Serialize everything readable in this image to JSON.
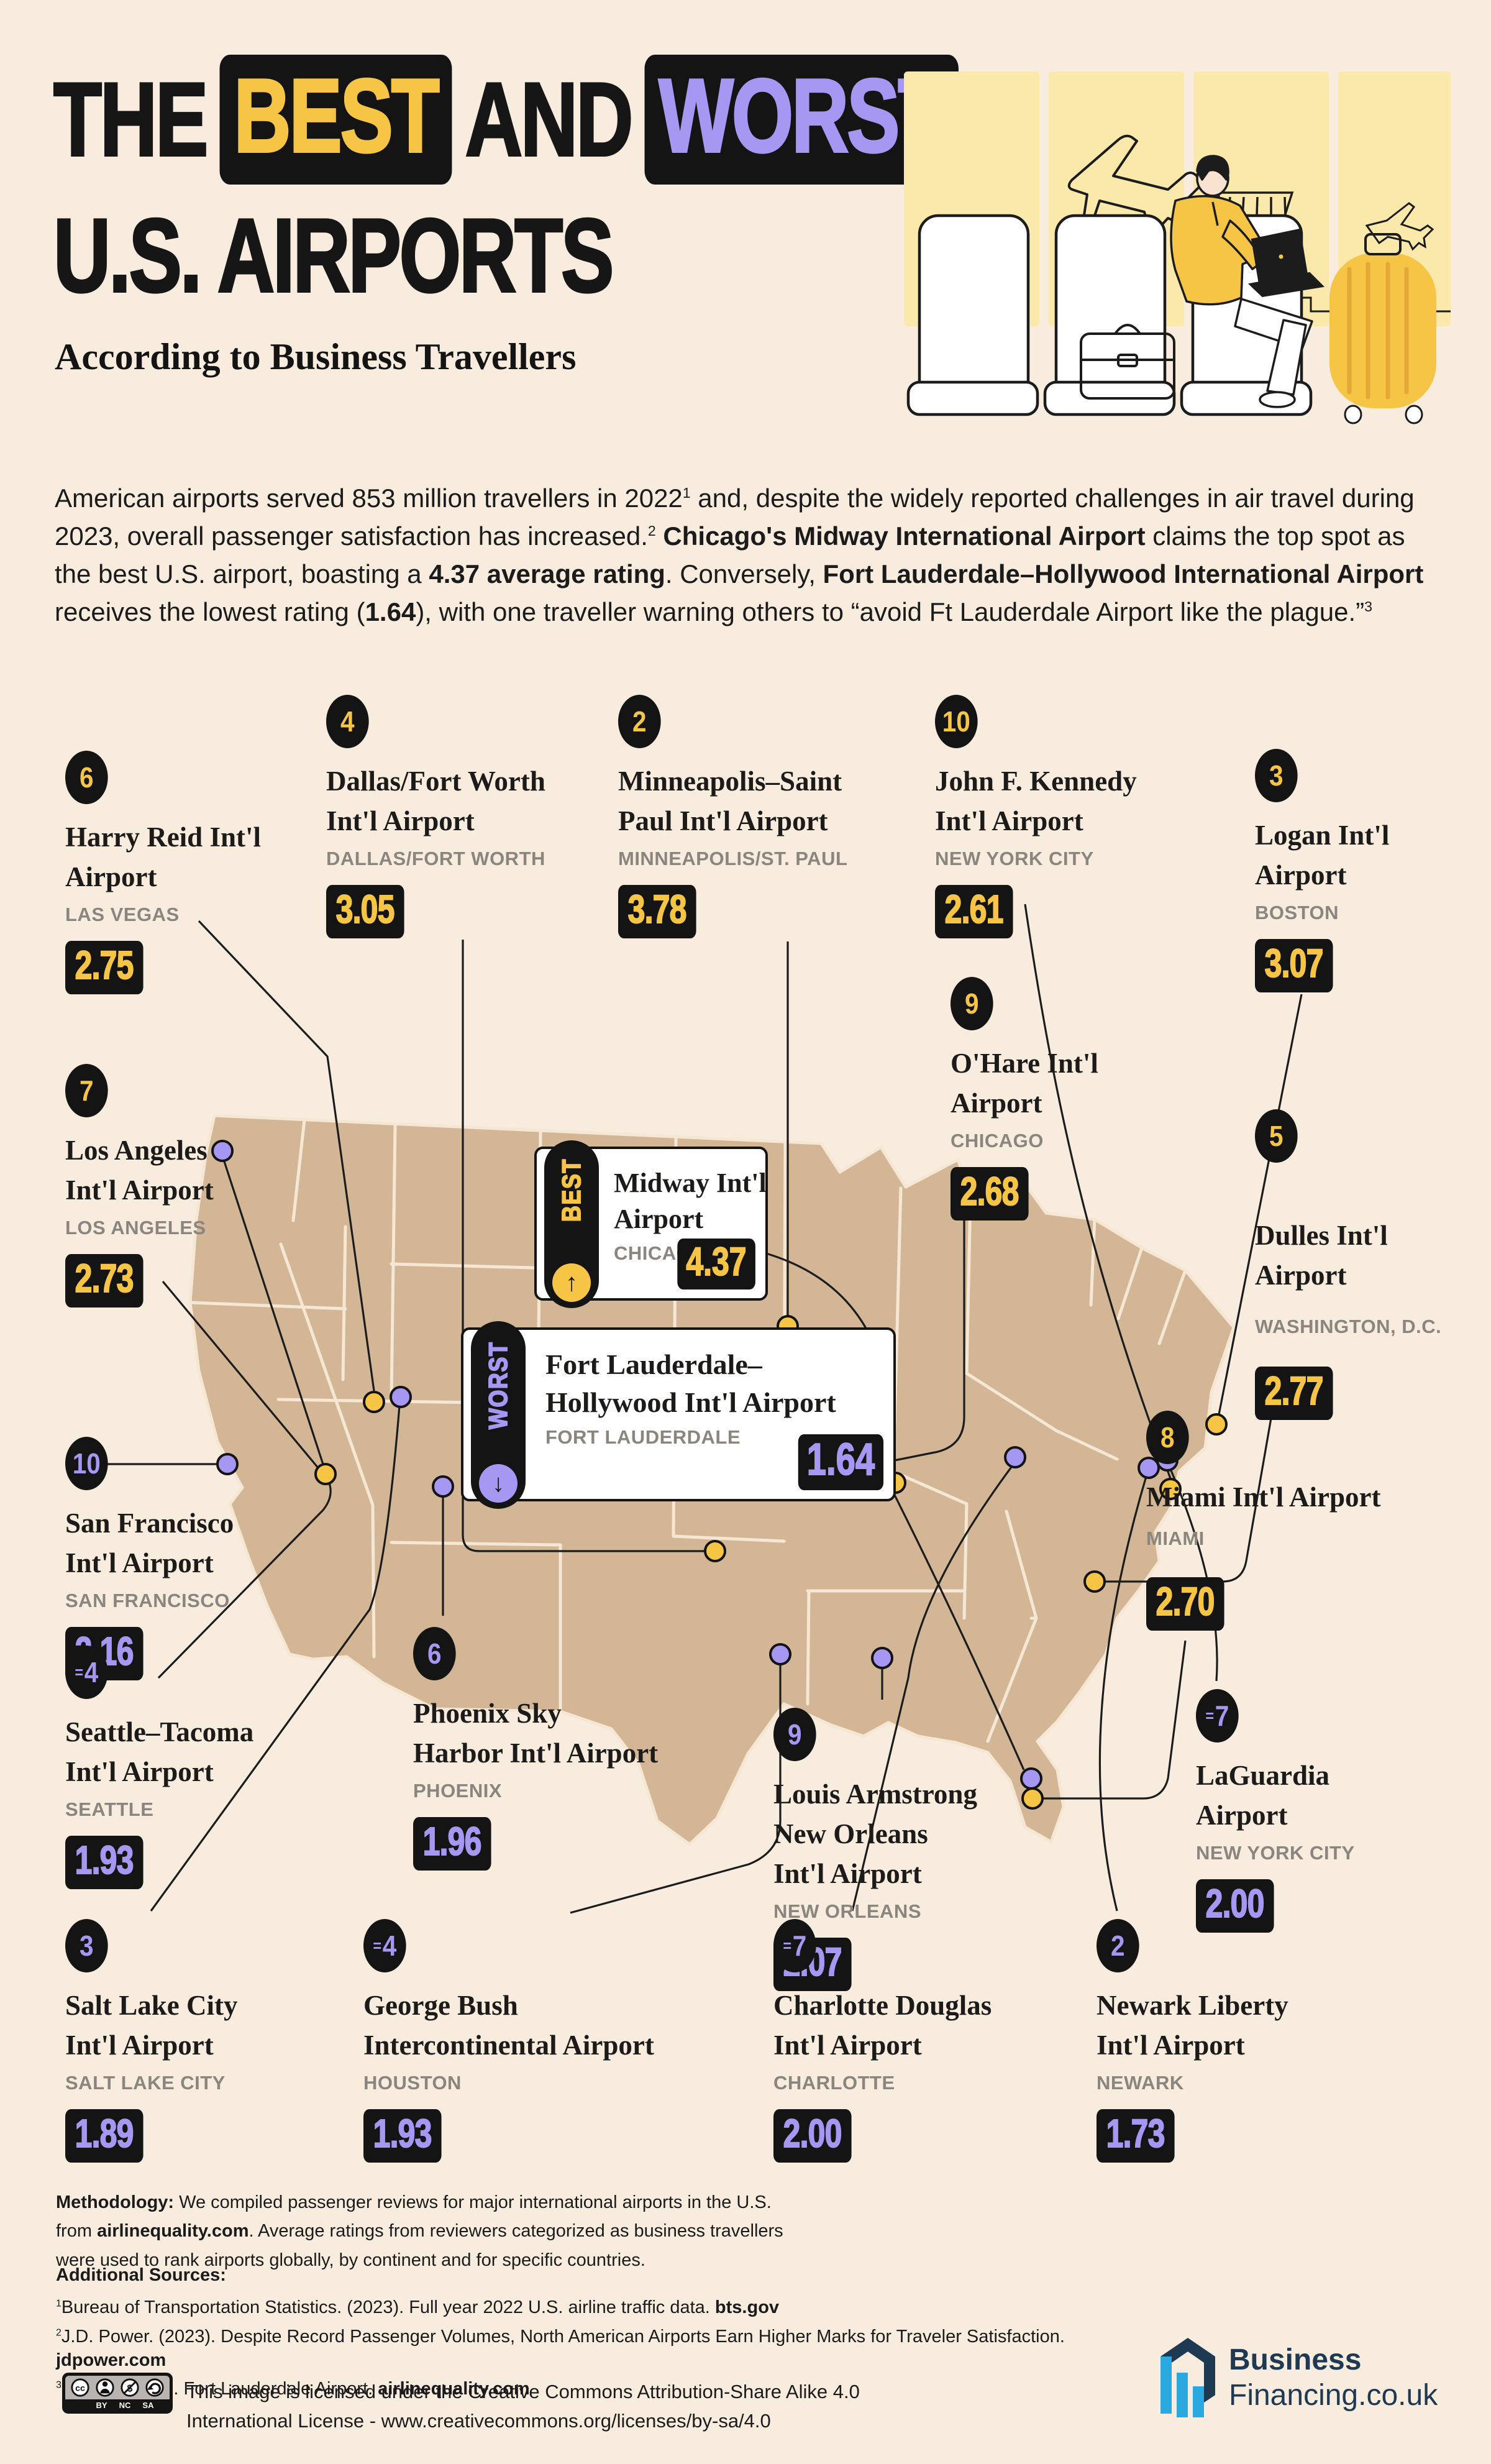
{
  "colors": {
    "background": "#f8ecdf",
    "ink": "#141414",
    "accent_yellow": "#f7c545",
    "accent_purple": "#a597f2",
    "map_fill": "#d2b695",
    "map_border": "#f6e7d4",
    "city_gray": "#8a857e",
    "logo_navy": "#1e3a52",
    "logo_blue": "#2aa9e0"
  },
  "header": {
    "title_the": "THE",
    "title_best": "BEST",
    "title_and": "AND",
    "title_worst": "WORST",
    "title_line2": "U.S. AIRPORTS",
    "subtitle": "According to Business Travellers"
  },
  "intro": {
    "segments": [
      {
        "t": "American airports served 853 million travellers in 2022"
      },
      {
        "t": "1",
        "sup": true
      },
      {
        "t": " and, despite the widely reported challenges in air travel during 2023, overall passenger satisfaction has increased."
      },
      {
        "t": "2",
        "sup": true
      },
      {
        "t": " "
      },
      {
        "t": "Chicago's Midway International Airport",
        "b": true
      },
      {
        "t": " claims the top spot as the best U.S. airport, boasting a "
      },
      {
        "t": "4.37 average rating",
        "b": true
      },
      {
        "t": ". Conversely, "
      },
      {
        "t": "Fort Lauderdale–Hollywood International Airport",
        "b": true
      },
      {
        "t": " receives the lowest rating ("
      },
      {
        "t": "1.64",
        "b": true
      },
      {
        "t": "), with one traveller warning others to “avoid Ft Lauderdale Airport like the plague.”"
      },
      {
        "t": "3",
        "sup": true
      }
    ]
  },
  "callouts": {
    "best": {
      "tag": "BEST",
      "arrow": "↑",
      "name_lines": [
        "Midway Int'l",
        "Airport"
      ],
      "city": "CHICAGO",
      "rating": "4.37"
    },
    "worst": {
      "tag": "WORST",
      "arrow": "↓",
      "name_lines": [
        "Fort Lauderdale–",
        "Hollywood Int'l Airport"
      ],
      "city": "FORT LAUDERDALE",
      "rating": "1.64"
    }
  },
  "airports": [
    {
      "id": "vegas",
      "rank": "6",
      "tone": "best",
      "name_lines": [
        "Harry Reid Int'l",
        "Airport"
      ],
      "city": "LAS VEGAS",
      "rating": "2.75"
    },
    {
      "id": "dfw",
      "rank": "4",
      "tone": "best",
      "name_lines": [
        "Dallas/Fort Worth",
        "Int'l Airport"
      ],
      "city": "DALLAS/FORT WORTH",
      "rating": "3.05"
    },
    {
      "id": "msp",
      "rank": "2",
      "tone": "best",
      "name_lines": [
        "Minneapolis–Saint",
        "Paul Int'l Airport"
      ],
      "city": "MINNEAPOLIS/ST. PAUL",
      "rating": "3.78"
    },
    {
      "id": "jfk",
      "rank": "10",
      "tone": "best",
      "name_lines": [
        "John F. Kennedy",
        "Int'l Airport"
      ],
      "city": "NEW YORK CITY",
      "rating": "2.61"
    },
    {
      "id": "logan",
      "rank": "3",
      "tone": "best",
      "name_lines": [
        "Logan Int'l",
        "Airport"
      ],
      "city": "BOSTON",
      "rating": "3.07"
    },
    {
      "id": "ohare",
      "rank": "9",
      "tone": "best",
      "name_lines": [
        "O'Hare Int'l",
        "Airport"
      ],
      "city": "CHICAGO",
      "rating": "2.68"
    },
    {
      "id": "dulles",
      "rank": "5",
      "tone": "best",
      "name_lines": [
        "Dulles Int'l",
        "Airport"
      ],
      "city": "WASHINGTON, D.C.",
      "rating": "2.77"
    },
    {
      "id": "lax",
      "rank": "7",
      "tone": "best",
      "name_lines": [
        "Los Angeles",
        "Int'l Airport"
      ],
      "city": "LOS ANGELES",
      "rating": "2.73"
    },
    {
      "id": "sfo",
      "rank": "10",
      "tone": "worst",
      "name_lines": [
        "San Francisco",
        "Int'l Airport"
      ],
      "city": "SAN FRANCISCO",
      "rating": "2.16"
    },
    {
      "id": "mia",
      "rank": "8",
      "tone": "best",
      "name_lines": [
        "Miami Int'l Airport"
      ],
      "city": "MIAMI",
      "rating": "2.70"
    },
    {
      "id": "sea",
      "rank": "4",
      "rank_prefix": "=",
      "tone": "worst",
      "name_lines": [
        "Seattle–Tacoma",
        "Int'l Airport"
      ],
      "city": "SEATTLE",
      "rating": "1.93"
    },
    {
      "id": "phx",
      "rank": "6",
      "tone": "worst",
      "name_lines": [
        "Phoenix Sky",
        "Harbor Int'l Airport"
      ],
      "city": "PHOENIX",
      "rating": "1.96"
    },
    {
      "id": "msy",
      "rank": "9",
      "tone": "worst",
      "name_lines": [
        "Louis Armstrong",
        "New Orleans",
        "Int'l Airport"
      ],
      "city": "NEW ORLEANS",
      "rating": "2.07"
    },
    {
      "id": "lga",
      "rank": "7",
      "rank_prefix": "=",
      "tone": "worst",
      "name_lines": [
        "LaGuardia",
        "Airport"
      ],
      "city": "NEW YORK CITY",
      "rating": "2.00"
    },
    {
      "id": "slc",
      "rank": "3",
      "tone": "worst",
      "name_lines": [
        "Salt Lake City",
        "Int'l Airport"
      ],
      "city": "SALT LAKE CITY",
      "rating": "1.89"
    },
    {
      "id": "iah",
      "rank": "4",
      "rank_prefix": "=",
      "tone": "worst",
      "name_lines": [
        "George Bush",
        "Intercontinental Airport"
      ],
      "city": "HOUSTON",
      "rating": "1.93"
    },
    {
      "id": "clt",
      "rank": "7",
      "rank_prefix": "=",
      "tone": "worst",
      "name_lines": [
        "Charlotte Douglas",
        "Int'l Airport"
      ],
      "city": "CHARLOTTE",
      "rating": "2.00"
    },
    {
      "id": "ewr",
      "rank": "2",
      "tone": "worst",
      "name_lines": [
        "Newark Liberty",
        "Int'l Airport"
      ],
      "city": "NEWARK",
      "rating": "1.73"
    }
  ],
  "map": {
    "dots": [
      {
        "id": "sea",
        "tone": "worst"
      },
      {
        "id": "sfo",
        "tone": "worst"
      },
      {
        "id": "lax",
        "tone": "best"
      },
      {
        "id": "las",
        "tone": "best"
      },
      {
        "id": "phx",
        "tone": "worst"
      },
      {
        "id": "slc",
        "tone": "worst"
      },
      {
        "id": "dfw",
        "tone": "best"
      },
      {
        "id": "iah",
        "tone": "worst"
      },
      {
        "id": "msy",
        "tone": "worst"
      },
      {
        "id": "msp",
        "tone": "best"
      },
      {
        "id": "ord",
        "tone": "best"
      },
      {
        "id": "mdw",
        "tone": "best"
      },
      {
        "id": "clt",
        "tone": "worst"
      },
      {
        "id": "iad",
        "tone": "best"
      },
      {
        "id": "ewr",
        "tone": "worst"
      },
      {
        "id": "lga",
        "tone": "worst"
      },
      {
        "id": "jfk",
        "tone": "best"
      },
      {
        "id": "bos",
        "tone": "best"
      },
      {
        "id": "fll",
        "tone": "worst"
      },
      {
        "id": "mia",
        "tone": "best"
      }
    ]
  },
  "footer": {
    "methodology_parts": [
      {
        "t": "Methodology: ",
        "b": true
      },
      {
        "t": "We compiled passenger reviews for major international airports in the U.S. from "
      },
      {
        "t": "airlinequality.com",
        "b": true
      },
      {
        "t": ". Average ratings from reviewers categorized as business travellers were used to rank airports globally, by continent and for specific countries."
      }
    ],
    "sources_label": "Additional Sources:",
    "sources": [
      {
        "sup": "1",
        "parts": [
          {
            "t": "Bureau of Transportation Statistics. (2023). Full year 2022 U.S. airline traffic data. "
          },
          {
            "t": "bts.gov",
            "b": true
          }
        ]
      },
      {
        "sup": "2",
        "parts": [
          {
            "t": "J.D. Power. (2023). Despite Record Passenger Volumes, North American Airports Earn Higher Marks for Traveler Satisfaction."
          },
          {
            "br": true
          },
          {
            "t": "jdpower.com",
            "b": true
          }
        ]
      },
      {
        "sup": "3",
        "parts": [
          {
            "t": "Skytrac. (n.d.). Fort Lauderdale Airport. "
          },
          {
            "t": "airlinequality.com",
            "b": true
          }
        ]
      }
    ]
  },
  "license": {
    "cc_labels": [
      "BY",
      "NC",
      "SA"
    ],
    "line1": "This image is licensed under the Creative Commons Attribution-Share Alike 4.0",
    "line2": "International License - www.creativecommons.org/licenses/by-sa/4.0"
  },
  "logo": {
    "line1": "Business",
    "line2": "Financing.co.uk"
  }
}
